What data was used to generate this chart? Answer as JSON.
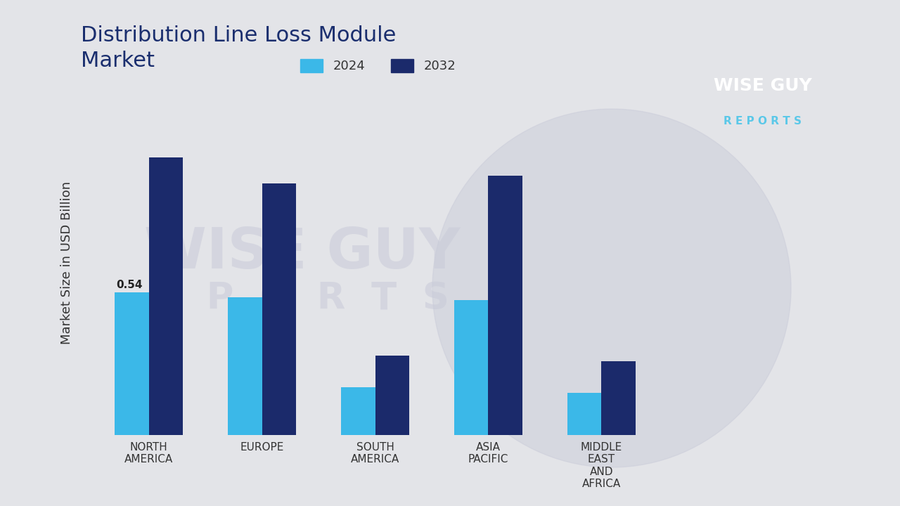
{
  "title": "Distribution Line Loss Module\nMarket",
  "ylabel": "Market Size in USD Billion",
  "categories": [
    "NORTH\nAMERICA",
    "EUROPE",
    "SOUTH\nAMERICA",
    "ASIA\nPACIFIC",
    "MIDDLE\nEAST\nAND\nAFRICA"
  ],
  "values_2024": [
    0.54,
    0.52,
    0.18,
    0.51,
    0.16
  ],
  "values_2032": [
    1.05,
    0.95,
    0.3,
    0.98,
    0.28
  ],
  "color_2024": "#3BB8E8",
  "color_2032": "#1B2A6B",
  "bar_annotation": "0.54",
  "background_color": "#E3E4E8",
  "right_panel_color": "#1B2A6B",
  "title_color": "#1A2E6E",
  "legend_labels": [
    "2024",
    "2032"
  ],
  "ylim": [
    0,
    1.3
  ],
  "title_fontsize": 22,
  "axis_label_fontsize": 13,
  "tick_label_fontsize": 11,
  "legend_fontsize": 13,
  "annotation_fontsize": 11,
  "bar_width": 0.3
}
